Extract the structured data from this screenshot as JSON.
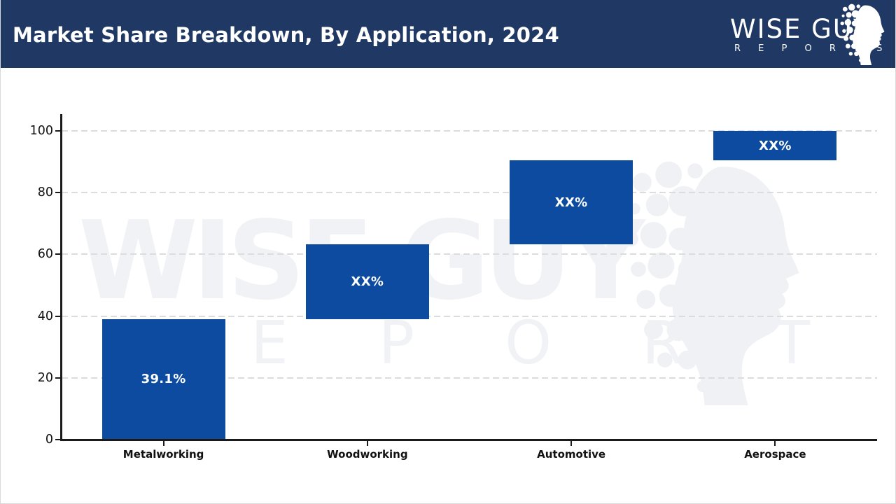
{
  "header": {
    "title": "Market Share Breakdown, By Application, 2024",
    "logo": {
      "name": "WISE GUY",
      "subname": "R E P O R T S"
    }
  },
  "watermark": {
    "line1": "WISE GUY",
    "line2": "R E P O R T S"
  },
  "chart_data": {
    "type": "bar",
    "subtype": "waterfall-floating-bars",
    "title": "Market Share Breakdown, By Application, 2024",
    "categories": [
      "Metalworking",
      "Woodworking",
      "Automotive",
      "Aerospace"
    ],
    "segments": [
      {
        "category": "Metalworking",
        "start": 0,
        "end": 39.1,
        "label": "39.1%"
      },
      {
        "category": "Woodworking",
        "start": 39.1,
        "end": 63.2,
        "label": "XX%"
      },
      {
        "category": "Automotive",
        "start": 63.2,
        "end": 90.4,
        "label": "XX%"
      },
      {
        "category": "Aerospace",
        "start": 90.4,
        "end": 100,
        "label": "XX%"
      }
    ],
    "xlabel": "",
    "ylabel": "",
    "ylim": [
      0,
      100
    ],
    "yticks": [
      0,
      20,
      40,
      60,
      80,
      100
    ],
    "grid": "horizontal-dashed",
    "legend": "none",
    "bar_color": "#0C4BA0",
    "bar_label_color": "#FFFFFF"
  },
  "colors": {
    "header_bg": "#203864",
    "bar": "#0C4BA0",
    "watermark": "#F1F2F5",
    "grid": "#DCDCDC",
    "axis": "#1A1A1A",
    "text": "#111111"
  }
}
